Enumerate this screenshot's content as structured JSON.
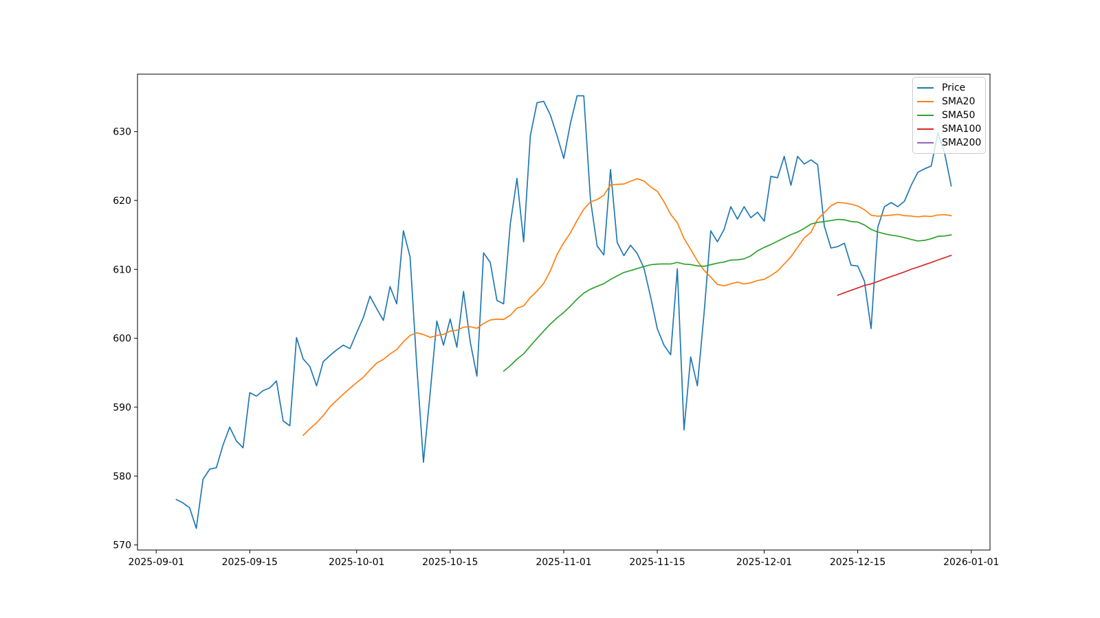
{
  "chart_data": {
    "type": "line",
    "title": "",
    "xlabel": "",
    "ylabel": "",
    "grid": false,
    "legend_position": "upper right",
    "x_margin_frac": 0.05,
    "y_margin_frac": 0.05,
    "y_tick_values": [
      570,
      580,
      590,
      600,
      610,
      620,
      630
    ],
    "x_tick_labels": [
      "2025-09-01",
      "2025-09-15",
      "2025-10-01",
      "2025-10-15",
      "2025-11-01",
      "2025-11-15",
      "2025-12-01",
      "2025-12-15",
      "2026-01-01"
    ],
    "series": [
      {
        "name": "Price",
        "color": "#1f77b4",
        "kind": "price"
      },
      {
        "name": "SMA20",
        "color": "#ff7f0e",
        "kind": "sma",
        "window": 20
      },
      {
        "name": "SMA50",
        "color": "#2ca02c",
        "kind": "sma",
        "window": 50
      },
      {
        "name": "SMA100",
        "color": "#d62728",
        "kind": "sma",
        "window": 100
      },
      {
        "name": "SMA200",
        "color": "#9467bd",
        "kind": "sma",
        "window": 200
      }
    ],
    "x": [
      "2025-09-04",
      "2025-09-05",
      "2025-09-06",
      "2025-09-07",
      "2025-09-08",
      "2025-09-09",
      "2025-09-10",
      "2025-09-11",
      "2025-09-12",
      "2025-09-13",
      "2025-09-14",
      "2025-09-15",
      "2025-09-16",
      "2025-09-17",
      "2025-09-18",
      "2025-09-19",
      "2025-09-20",
      "2025-09-21",
      "2025-09-22",
      "2025-09-23",
      "2025-09-24",
      "2025-09-25",
      "2025-09-26",
      "2025-09-27",
      "2025-09-28",
      "2025-09-29",
      "2025-09-30",
      "2025-10-01",
      "2025-10-02",
      "2025-10-03",
      "2025-10-04",
      "2025-10-05",
      "2025-10-06",
      "2025-10-07",
      "2025-10-08",
      "2025-10-09",
      "2025-10-10",
      "2025-10-11",
      "2025-10-12",
      "2025-10-13",
      "2025-10-14",
      "2025-10-15",
      "2025-10-16",
      "2025-10-17",
      "2025-10-18",
      "2025-10-19",
      "2025-10-20",
      "2025-10-21",
      "2025-10-22",
      "2025-10-23",
      "2025-10-24",
      "2025-10-25",
      "2025-10-26",
      "2025-10-27",
      "2025-10-28",
      "2025-10-29",
      "2025-10-30",
      "2025-10-31",
      "2025-11-01",
      "2025-11-02",
      "2025-11-03",
      "2025-11-04",
      "2025-11-05",
      "2025-11-06",
      "2025-11-07",
      "2025-11-08",
      "2025-11-09",
      "2025-11-10",
      "2025-11-11",
      "2025-11-12",
      "2025-11-13",
      "2025-11-14",
      "2025-11-15",
      "2025-11-16",
      "2025-11-17",
      "2025-11-18",
      "2025-11-19",
      "2025-11-20",
      "2025-11-21",
      "2025-11-22",
      "2025-11-23",
      "2025-11-24",
      "2025-11-25",
      "2025-11-26",
      "2025-11-27",
      "2025-11-28",
      "2025-11-29",
      "2025-11-30",
      "2025-12-01",
      "2025-12-02",
      "2025-12-03",
      "2025-12-04",
      "2025-12-05",
      "2025-12-06",
      "2025-12-07",
      "2025-12-08",
      "2025-12-09",
      "2025-12-10",
      "2025-12-11",
      "2025-12-12",
      "2025-12-13",
      "2025-12-14",
      "2025-12-15",
      "2025-12-16",
      "2025-12-17",
      "2025-12-18",
      "2025-12-19",
      "2025-12-20",
      "2025-12-21",
      "2025-12-22",
      "2025-12-23",
      "2025-12-24",
      "2025-12-25",
      "2025-12-26",
      "2025-12-27",
      "2025-12-28",
      "2025-12-29"
    ],
    "price_values": [
      576.6,
      576.1,
      575.4,
      572.4,
      579.5,
      581.0,
      581.2,
      584.5,
      587.1,
      585.1,
      584.1,
      592.1,
      591.6,
      592.4,
      592.8,
      593.8,
      588.0,
      587.3,
      600.1,
      597.0,
      595.9,
      593.1,
      596.6,
      597.5,
      598.3,
      599.0,
      598.5,
      600.8,
      603.0,
      606.1,
      604.3,
      602.6,
      607.5,
      605.0,
      615.6,
      611.8,
      596.0,
      582.0,
      592.0,
      602.5,
      599.0,
      602.8,
      598.7,
      606.8,
      599.5,
      594.5,
      612.4,
      611.0,
      605.5,
      605.0,
      616.6,
      623.2,
      614.0,
      629.4,
      634.2,
      634.4,
      632.4,
      629.4,
      626.1,
      631.2,
      635.2,
      635.2,
      620.1,
      613.4,
      612.1,
      624.5,
      613.9,
      612.0,
      613.5,
      612.3,
      610.2,
      606.0,
      601.4,
      599.0,
      597.6,
      610.1,
      586.7,
      597.3,
      593.1,
      603.6,
      615.6,
      614.0,
      615.8,
      619.1,
      617.3,
      619.1,
      617.5,
      618.3,
      617.0,
      623.5,
      623.3,
      626.4,
      622.2,
      626.4,
      625.3,
      625.9,
      625.2,
      616.3,
      613.1,
      613.3,
      613.8,
      610.6,
      610.5,
      608.3,
      601.4,
      616.1,
      619.1,
      619.7,
      619.1,
      619.9,
      622.2,
      624.1,
      624.6,
      625.0,
      629.8,
      626.9,
      622.1
    ]
  }
}
